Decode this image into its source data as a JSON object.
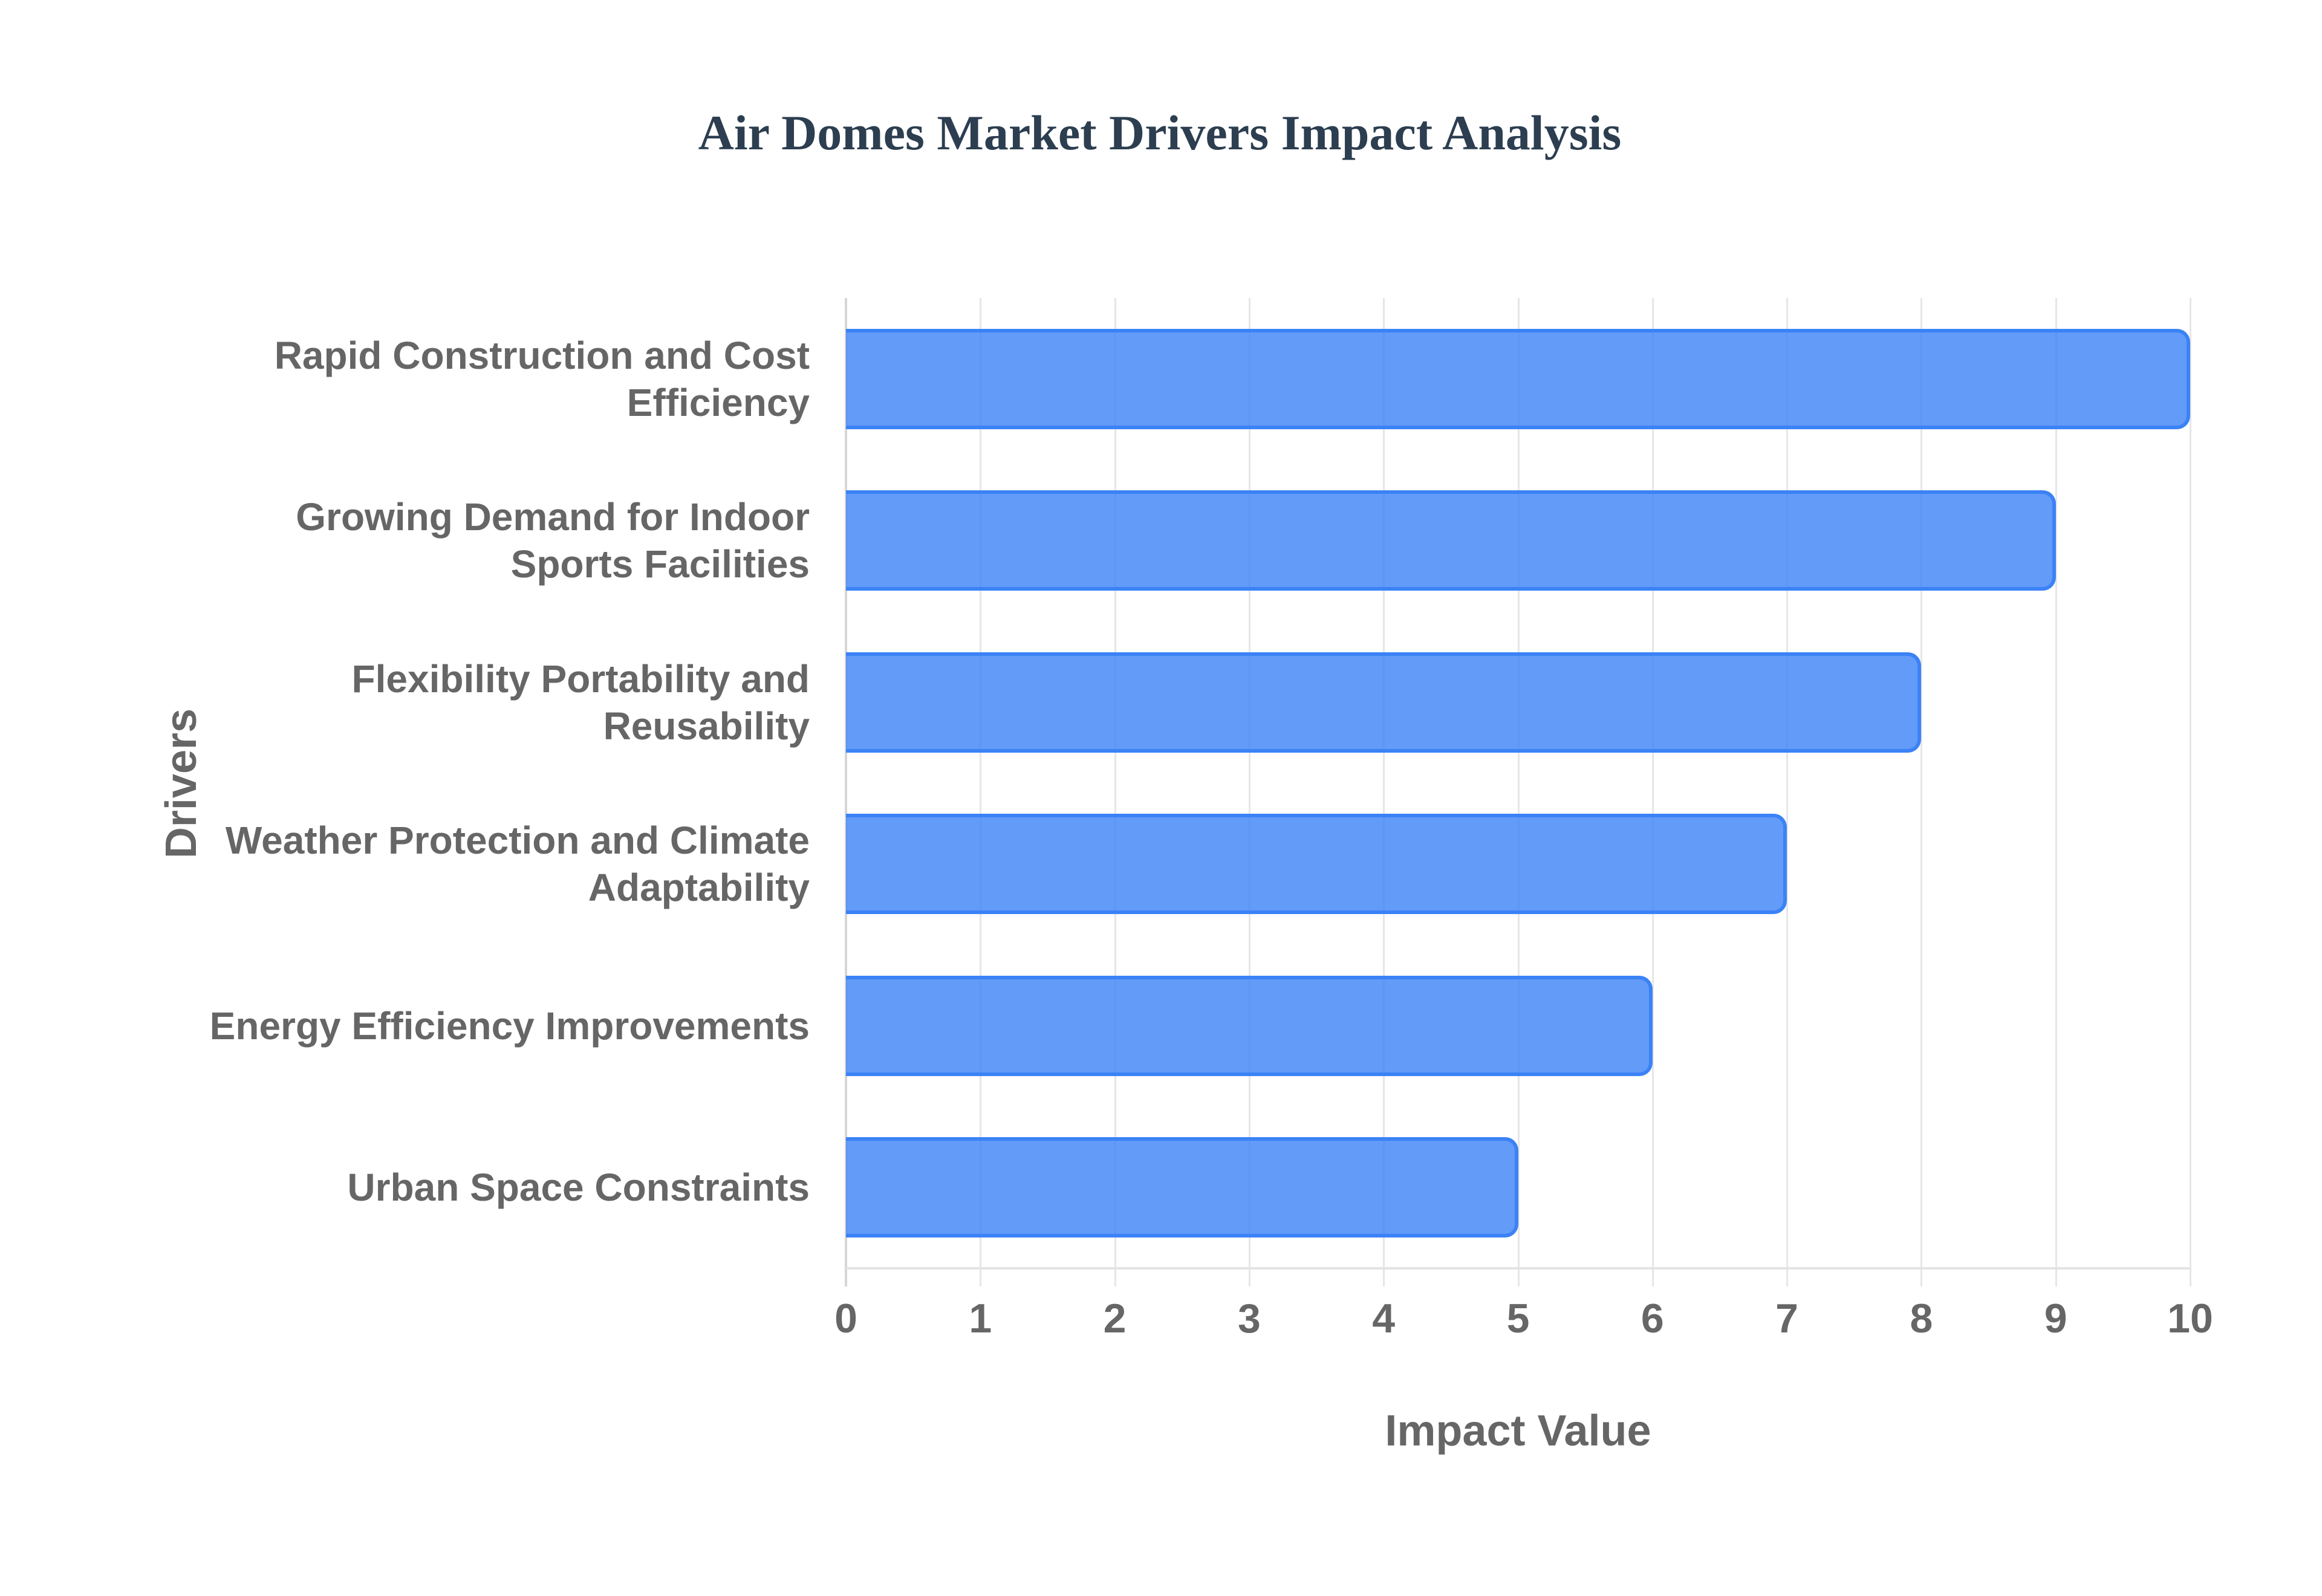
{
  "title": "Air Domes Market Drivers Impact Analysis",
  "axes": {
    "x_title": "Impact Value",
    "y_title": "Drivers",
    "x_ticks": [
      "0",
      "1",
      "2",
      "3",
      "4",
      "5",
      "6",
      "7",
      "8",
      "9",
      "10"
    ]
  },
  "categories": [
    {
      "lines": [
        "Rapid Construction and Cost",
        "Efficiency"
      ],
      "value": 10
    },
    {
      "lines": [
        "Growing Demand for Indoor",
        "Sports Facilities"
      ],
      "value": 9
    },
    {
      "lines": [
        "Flexibility Portability and",
        "Reusability"
      ],
      "value": 8
    },
    {
      "lines": [
        "Weather Protection and Climate",
        "Adaptability"
      ],
      "value": 7
    },
    {
      "lines": [
        "Energy Efficiency Improvements"
      ],
      "value": 6
    },
    {
      "lines": [
        "Urban Space Constraints"
      ],
      "value": 5
    }
  ],
  "colors": {
    "bar_fill": "rgba(59,130,246,0.8)",
    "bar_border": "#3b82f6",
    "title": "#2c3e50",
    "axis_text": "#666666",
    "grid": "#e6e6e6"
  },
  "chart_data": {
    "type": "bar",
    "orientation": "horizontal",
    "title": "Air Domes Market Drivers Impact Analysis",
    "categories": [
      "Rapid Construction and Cost Efficiency",
      "Growing Demand for Indoor Sports Facilities",
      "Flexibility Portability and Reusability",
      "Weather Protection and Climate Adaptability",
      "Energy Efficiency Improvements",
      "Urban Space Constraints"
    ],
    "values": [
      10,
      9,
      8,
      7,
      6,
      5
    ],
    "xlabel": "Impact Value",
    "ylabel": "Drivers",
    "xlim": [
      0,
      10
    ],
    "x_ticks": [
      0,
      1,
      2,
      3,
      4,
      5,
      6,
      7,
      8,
      9,
      10
    ],
    "grid": true,
    "legend": "none"
  }
}
